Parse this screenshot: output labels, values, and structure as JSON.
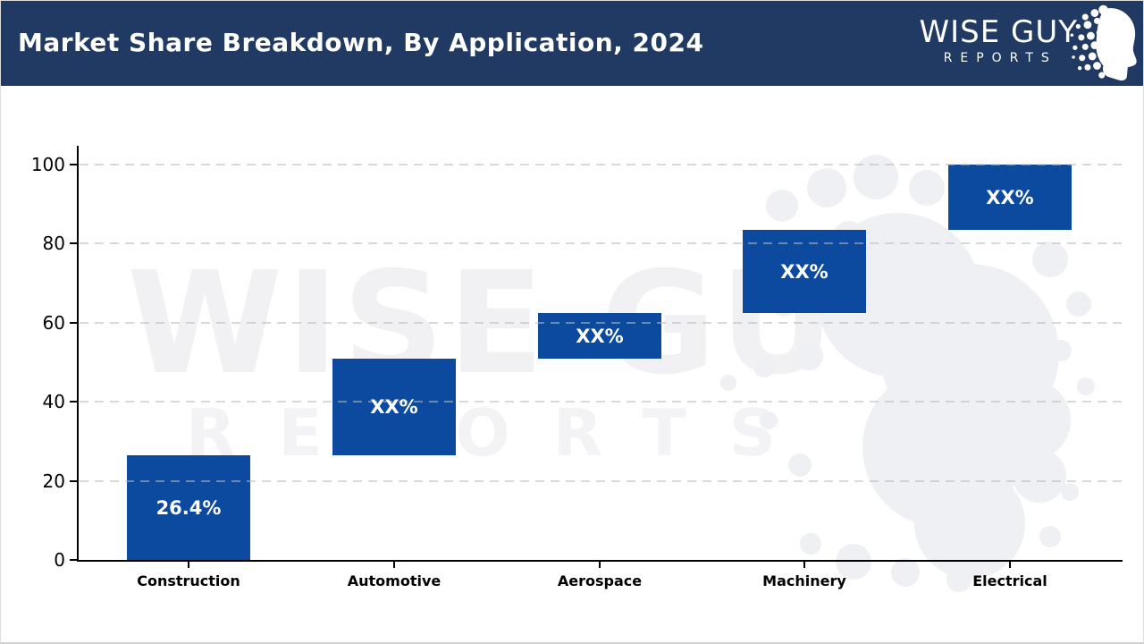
{
  "header": {
    "title": "Market Share Breakdown, By Application, 2024"
  },
  "logo": {
    "line1": "WISE GUY",
    "line2": "REPORTS"
  },
  "watermark": {
    "line1": "WISE GUY",
    "line2": "REPORTS"
  },
  "colors": {
    "header_bg": "#203a64",
    "bar": "#0b4a9e",
    "bar_label": "#ffffff",
    "axis": "#000000",
    "gridline": "#d9d9d9",
    "frame": "#d2d2d2"
  },
  "chart_data": {
    "type": "bar",
    "variant": "waterfall",
    "title": "Market Share Breakdown, By Application, 2024",
    "xlabel": "",
    "ylabel": "",
    "categories": [
      "Construction",
      "Automotive",
      "Aerospace",
      "Machinery",
      "Electrical"
    ],
    "segments": [
      {
        "category": "Construction",
        "start": 0,
        "end": 26.4,
        "label": "26.4%"
      },
      {
        "category": "Automotive",
        "start": 26.4,
        "end": 50.9,
        "label": "XX%"
      },
      {
        "category": "Aerospace",
        "start": 50.9,
        "end": 62.4,
        "label": "XX%"
      },
      {
        "category": "Machinery",
        "start": 62.4,
        "end": 83.4,
        "label": "XX%"
      },
      {
        "category": "Electrical",
        "start": 83.4,
        "end": 100,
        "label": "XX%"
      }
    ],
    "yticks": [
      0,
      20,
      40,
      60,
      80,
      100
    ],
    "ylim": [
      0,
      100
    ],
    "grid": true,
    "grid_style": "dashed",
    "legend": null,
    "bar_color": "#0b4a9e",
    "label_color": "#ffffff"
  }
}
